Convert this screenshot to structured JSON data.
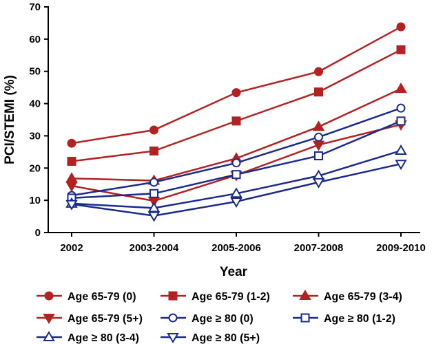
{
  "chart_data": {
    "type": "line",
    "title": "",
    "xlabel": "Year",
    "ylabel": "PCI/STEMI (%)",
    "categories": [
      "2002",
      "2003-2004",
      "2005-2006",
      "2007-2008",
      "2009-2010"
    ],
    "ylim": [
      0,
      70
    ],
    "yticks": [
      0,
      10,
      20,
      30,
      40,
      50,
      60,
      70
    ],
    "grid": false,
    "legend_position": "bottom",
    "series": [
      {
        "name": "Age 65-79 (0)",
        "color": "#b22222",
        "marker": "circle-filled",
        "values": [
          27.7,
          31.8,
          43.4,
          49.9,
          63.8
        ]
      },
      {
        "name": "Age 65-79 (1-2)",
        "color": "#b22222",
        "marker": "square-filled",
        "values": [
          22.1,
          25.3,
          34.6,
          43.6,
          56.7
        ]
      },
      {
        "name": "Age 65-79 (3-4)",
        "color": "#b22222",
        "marker": "triangle-up-filled",
        "values": [
          16.8,
          16.1,
          23.0,
          32.8,
          44.6
        ]
      },
      {
        "name": "Age 65-79 (5+)",
        "color": "#b22222",
        "marker": "triangle-down-filled",
        "values": [
          14.5,
          9.8,
          17.8,
          27.2,
          33.5
        ]
      },
      {
        "name": "Age ≥ 80 (0)",
        "color": "#1a2a8c",
        "marker": "circle-open",
        "values": [
          11.5,
          15.6,
          21.6,
          29.6,
          38.6
        ]
      },
      {
        "name": "Age ≥ 80 (1-2)",
        "color": "#1a2a8c",
        "marker": "square-open",
        "values": [
          10.7,
          12.1,
          18.0,
          23.8,
          34.6
        ]
      },
      {
        "name": "Age ≥ 80 (3-4)",
        "color": "#1a2a8c",
        "marker": "triangle-up-open",
        "values": [
          9.0,
          7.6,
          12.1,
          17.6,
          25.4
        ]
      },
      {
        "name": "Age ≥ 80 (5+)",
        "color": "#1a2a8c",
        "marker": "triangle-down-open",
        "values": [
          8.8,
          5.2,
          9.6,
          15.6,
          21.3
        ]
      }
    ]
  }
}
